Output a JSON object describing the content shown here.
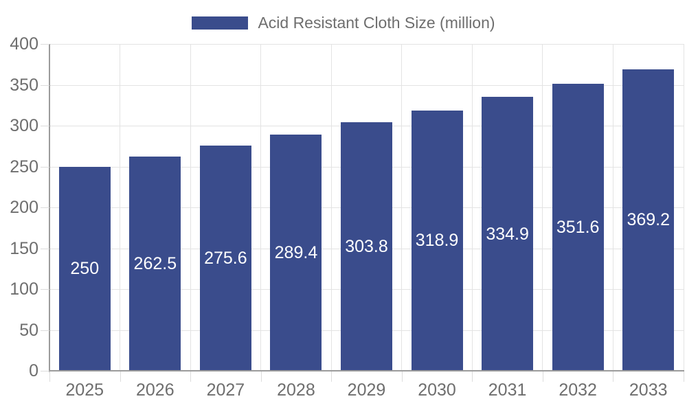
{
  "legend": {
    "label": "Acid Resistant Cloth Size (million)"
  },
  "chart_data": {
    "type": "bar",
    "title": "Acid Resistant Cloth Size (million)",
    "categories": [
      "2025",
      "2026",
      "2027",
      "2028",
      "2029",
      "2030",
      "2031",
      "2032",
      "2033"
    ],
    "values": [
      250,
      262.5,
      275.6,
      289.4,
      303.8,
      318.9,
      334.9,
      351.6,
      369.2
    ],
    "value_labels": [
      "250",
      "262.5",
      "275.6",
      "289.4",
      "303.8",
      "318.9",
      "334.9",
      "351.6",
      "369.2"
    ],
    "series_name": "Acid Resistant Cloth Size (million)",
    "xlabel": "",
    "ylabel": "",
    "ylim": [
      0,
      400
    ],
    "yticks": [
      0,
      50,
      100,
      150,
      200,
      250,
      300,
      350,
      400
    ],
    "grid": true,
    "legend_position": "top",
    "value_label_position": "inside-center",
    "colors": {
      "bar": "#3a4c8c",
      "bar_value_text": "#ffffff",
      "axis_line": "#9b9b9b",
      "grid_line": "#e3e3e3",
      "tick": "#dcdcdc",
      "axis_text": "#6e6e6e",
      "legend_text": "#6e6e6e",
      "background": "#ffffff"
    }
  }
}
